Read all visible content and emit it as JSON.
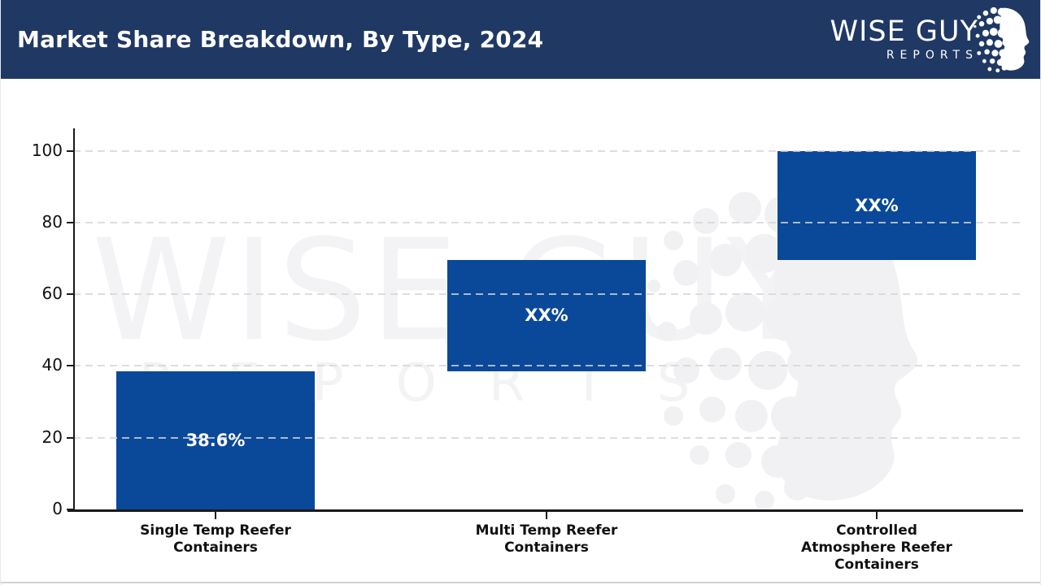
{
  "header": {
    "title": "Market Share Breakdown, By Type, 2024",
    "logo_line1": "WISE GUY",
    "logo_line2": "REPORTS"
  },
  "watermark": {
    "line1": "WISE GUY",
    "line2": "REPORTS"
  },
  "chart_data": {
    "type": "bar",
    "subtype": "waterfall-stacked-progression",
    "title": "Market Share Breakdown, By Type, 2024",
    "categories": [
      "Single Temp Reefer Containers",
      "Multi Temp Reefer Containers",
      "Controlled Atmosphere Reefer Containers"
    ],
    "category_label_lines": [
      [
        "Single Temp Reefer",
        "Containers"
      ],
      [
        "Multi Temp Reefer",
        "Containers"
      ],
      [
        "Controlled",
        "Atmosphere Reefer",
        "Containers"
      ]
    ],
    "segments": [
      {
        "category": "Single Temp Reefer Containers",
        "start": 0,
        "end": 38.6,
        "label": "38.6%"
      },
      {
        "category": "Multi Temp Reefer Containers",
        "start": 38.6,
        "end": 69.6,
        "label": "XX%"
      },
      {
        "category": "Controlled Atmosphere Reefer Containers",
        "start": 69.6,
        "end": 100,
        "label": "XX%"
      }
    ],
    "yticks": [
      0,
      20,
      40,
      60,
      80,
      100
    ],
    "ylim": [
      0,
      106
    ],
    "xlabel": "",
    "ylabel": "",
    "grid": "horizontal-dashed",
    "legend": "none",
    "bar_color": "#0a4899",
    "value_label_color": "#ffffff"
  },
  "colors": {
    "header_bg": "#1f3864",
    "bar": "#0a4899",
    "grid": "#d5d5d8",
    "axis": "#1a1a1a",
    "watermark": "#f3f3f5",
    "logo_text": "#ffffff"
  }
}
